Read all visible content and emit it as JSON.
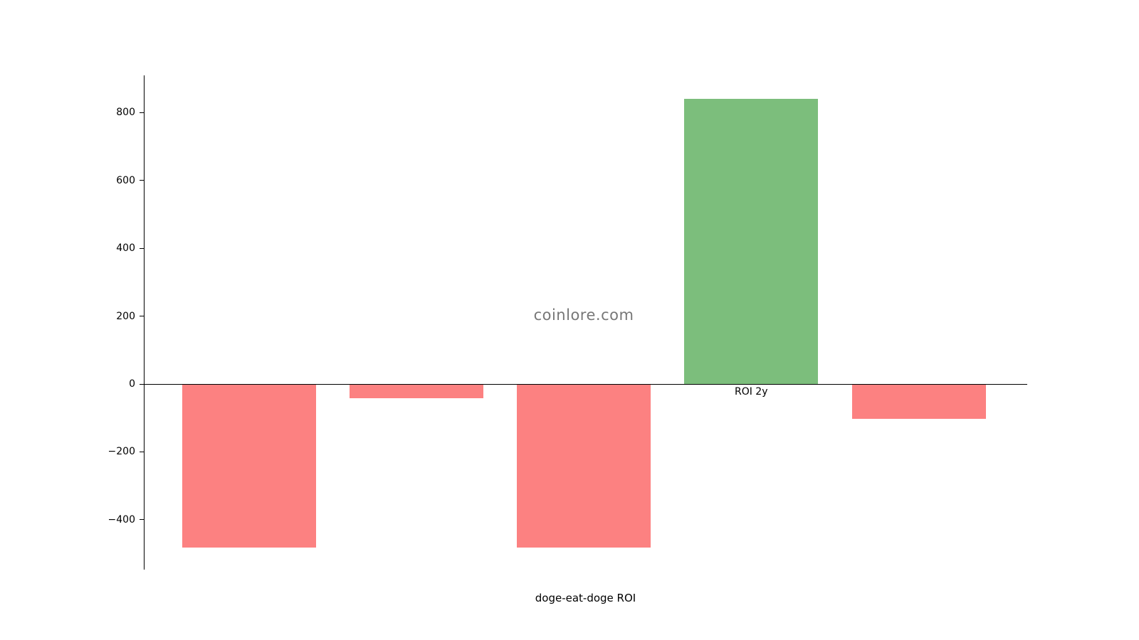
{
  "watermark": "coinlore.com",
  "chart_data": {
    "type": "bar",
    "categories": [
      "",
      "",
      "",
      "ROI 2y",
      ""
    ],
    "values": [
      -480,
      -40,
      -480,
      840,
      -100
    ],
    "title": "",
    "xlabel": "doge-eat-doge ROI",
    "ylabel": "",
    "ylim": [
      -547,
      910
    ],
    "yticks": [
      {
        "label": "800",
        "value": 800
      },
      {
        "label": "600",
        "value": 600
      },
      {
        "label": "400",
        "value": 400
      },
      {
        "label": "200",
        "value": 200
      },
      {
        "label": "0",
        "value": 0
      },
      {
        "label": "−200",
        "value": -200
      },
      {
        "label": "−400",
        "value": -400
      }
    ],
    "grid": false,
    "legend_position": "none"
  },
  "colors": {
    "positive_bar": "#7cbe7c",
    "negative_bar": "#fc8181",
    "axis": "#000000",
    "tick_text": "#000000",
    "watermark_text": "#777777",
    "background": "#ffffff"
  }
}
